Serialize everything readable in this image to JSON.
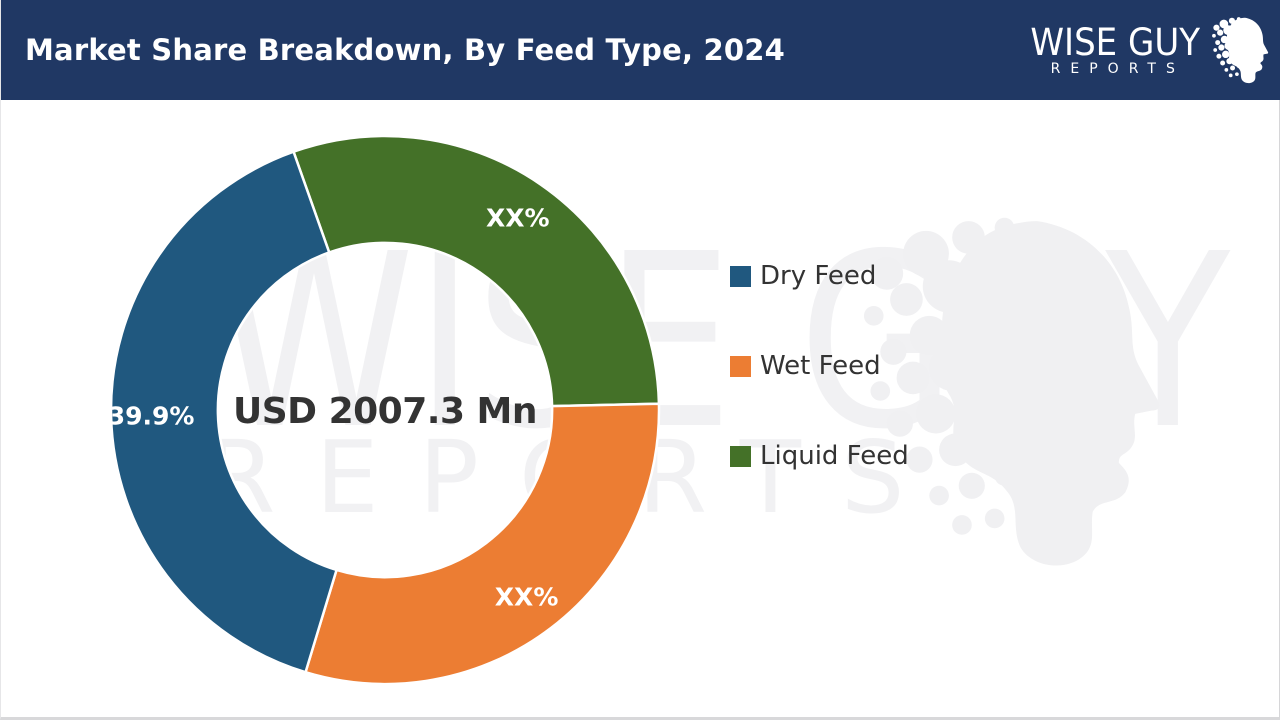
{
  "header": {
    "title": "Market Share Breakdown, By Feed Type, 2024",
    "bg_color": "#203864",
    "logo": {
      "line1": "WISE GUY",
      "line2": "REPORTS"
    }
  },
  "watermark": {
    "line1": "WISE GUY",
    "line2": "REPORTS"
  },
  "chart_data": {
    "type": "pie",
    "subtype": "donut",
    "title": "Market Share Breakdown, By Feed Type, 2024",
    "center_label": "USD 2007.3 Mn",
    "start_angle_deg": -19.5,
    "inner_radius_ratio": 0.61,
    "outer_radius_px": 274,
    "label_radius_px": 234,
    "legend_position": "right",
    "slices": [
      {
        "label": "Liquid Feed",
        "value_pct": 30.05,
        "display": "XX%",
        "color": "#447128"
      },
      {
        "label": "Wet Feed",
        "value_pct": 30.05,
        "display": "XX%",
        "color": "#EC7D33"
      },
      {
        "label": "Dry Feed",
        "value_pct": 39.9,
        "display": "39.9%",
        "color": "#20587F"
      }
    ],
    "legend": [
      {
        "label": "Dry Feed",
        "color": "#20587F"
      },
      {
        "label": "Wet Feed",
        "color": "#EC7D33"
      },
      {
        "label": "Liquid Feed",
        "color": "#447128"
      }
    ]
  }
}
